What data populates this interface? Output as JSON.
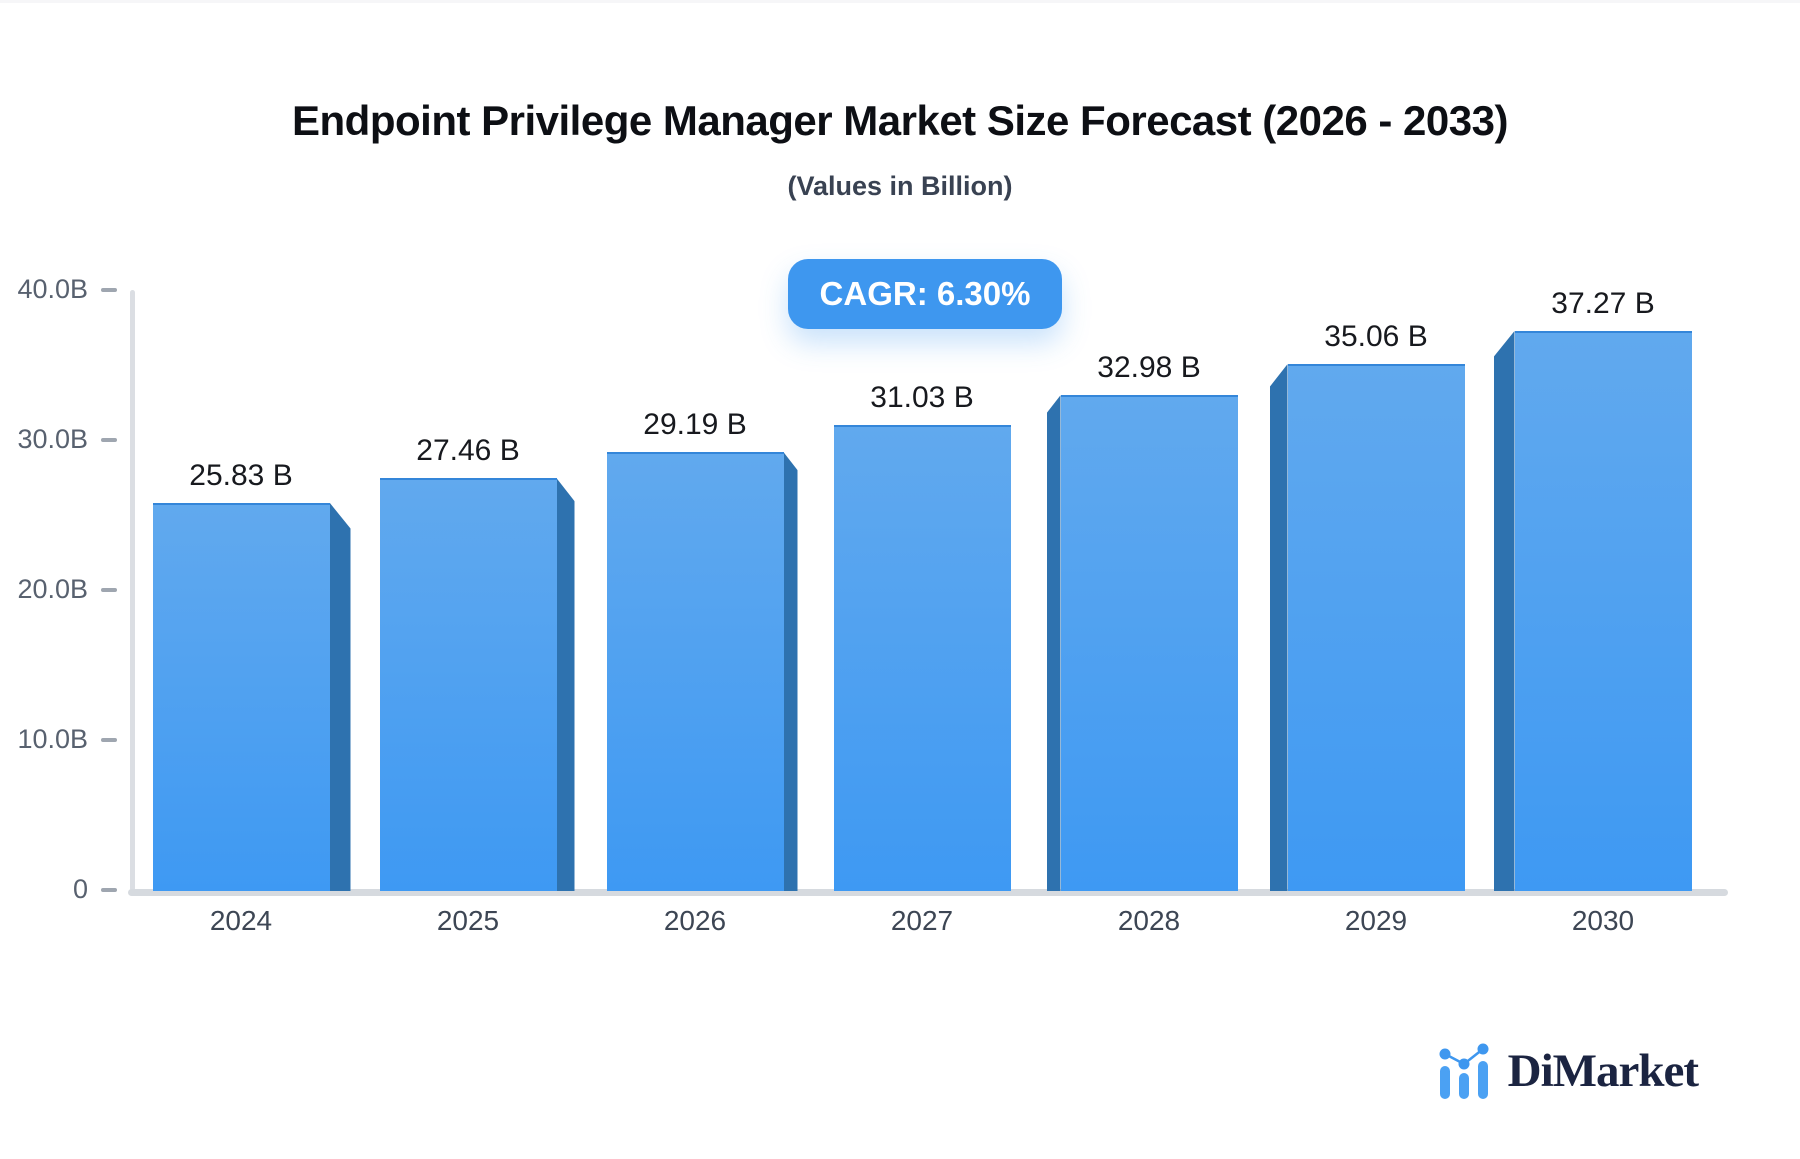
{
  "header": {
    "title": "Endpoint Privilege Manager Market Size Forecast (2026 - 2033)",
    "subtitle": "(Values in Billion)",
    "cagr_badge": "CAGR: 6.30%"
  },
  "chart_data": {
    "type": "bar",
    "title": "Endpoint Privilege Manager Market Size Forecast (2026 - 2033)",
    "subtitle": "(Values in Billion)",
    "annotation": "CAGR: 6.30%",
    "categories": [
      "2024",
      "2025",
      "2026",
      "2027",
      "2028",
      "2029",
      "2030"
    ],
    "values": [
      25.83,
      27.46,
      29.19,
      31.03,
      32.98,
      35.06,
      37.27
    ],
    "value_labels": [
      "25.83 B",
      "27.46 B",
      "29.19 B",
      "31.03 B",
      "32.98 B",
      "35.06 B",
      "37.27 B"
    ],
    "y_ticks": [
      {
        "value": 0,
        "label": "0"
      },
      {
        "value": 10,
        "label": "10.0B"
      },
      {
        "value": 20,
        "label": "20.0B"
      },
      {
        "value": 30,
        "label": "30.0B"
      },
      {
        "value": 40,
        "label": "40.0B"
      }
    ],
    "ylim": [
      0,
      40
    ],
    "grid": false,
    "legend": false
  },
  "colors": {
    "bar_face_top": "#61a9ee",
    "bar_face_bottom": "#3e99f3",
    "bar_side": "#2e72af",
    "badge_bg": "#3e97ef",
    "badge_text": "#ffffff",
    "axis_line": "#dbdee3",
    "tick": "#9fa6b0",
    "y_label_color": "#58616f",
    "x_label_color": "#3d4654",
    "value_label_color": "#17191e",
    "title_color": "#0d0f14",
    "subtitle_color": "#394252",
    "logo_blue": "#4ba1f3",
    "logo_text_color": "#1b2441"
  },
  "logo": {
    "text": "DiMarket",
    "icon": "mini-bar-chart-icon"
  }
}
